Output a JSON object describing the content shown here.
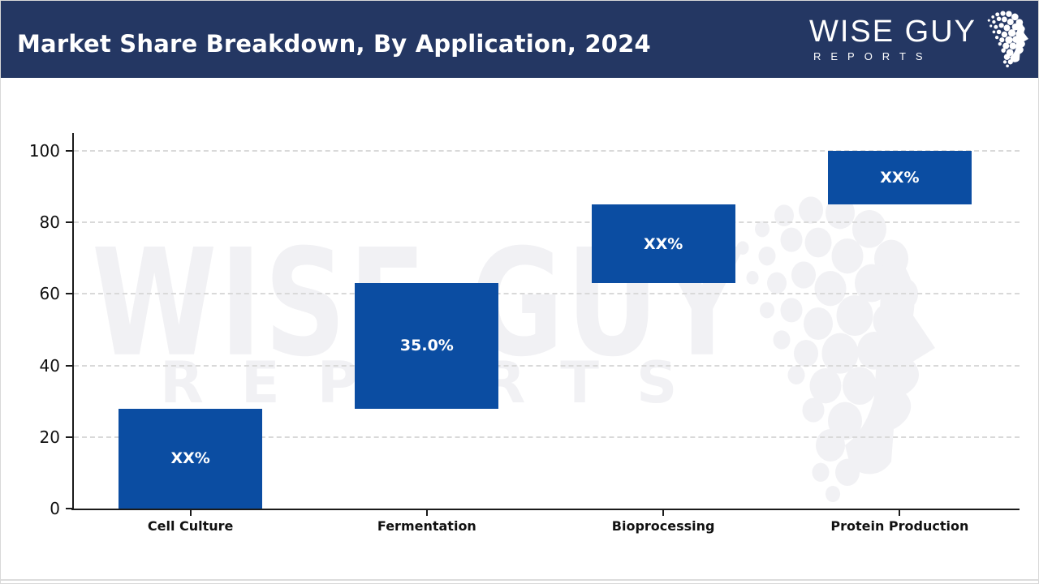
{
  "header": {
    "title": "Market Share Breakdown, By Application, 2024",
    "brand_line1": "WISE GUY",
    "brand_line2": "REPORTS",
    "background": "#243763",
    "text_color": "#ffffff"
  },
  "watermark": {
    "line1": "WISE GUY",
    "line2": "REPORTS"
  },
  "chart_data": {
    "type": "bar",
    "variant": "floating-waterfall-bars",
    "title": "Market Share Breakdown, By Application, 2024",
    "categories": [
      "Cell Culture",
      "Fermentation",
      "Bioprocessing",
      "Protein Production"
    ],
    "series": [
      {
        "name": "Market Share (%)",
        "starts": [
          0,
          28,
          63,
          85
        ],
        "ends": [
          28,
          63,
          85,
          100
        ]
      }
    ],
    "segment_heights": [
      28,
      35,
      22,
      15
    ],
    "bar_labels": [
      "XX%",
      "35.0%",
      "XX%",
      "XX%"
    ],
    "y_ticks": [
      0,
      20,
      40,
      60,
      80,
      100
    ],
    "ylim": [
      0,
      105
    ],
    "xlabel": "",
    "ylabel": "",
    "grid": "horizontal dashed",
    "legend": "none",
    "bar_color": "#0b4da2",
    "bar_label_color": "#ffffff",
    "axis_color": "#1a1a1a",
    "grid_color": "#d9d9d9"
  }
}
